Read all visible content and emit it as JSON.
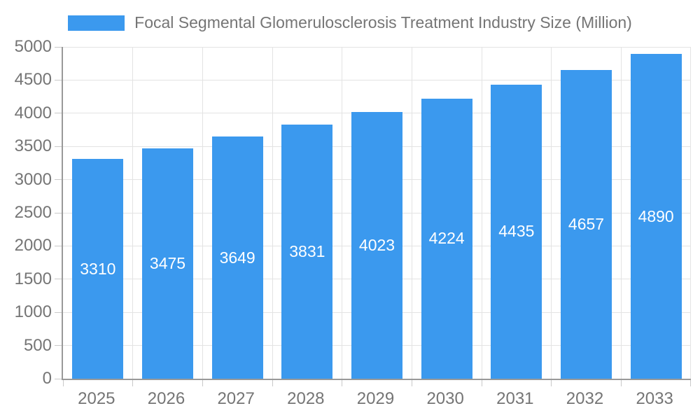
{
  "chart_data": {
    "type": "bar",
    "title": "Focal Segmental Glomerulosclerosis Treatment Industry Size (Million)",
    "categories": [
      "2025",
      "2026",
      "2027",
      "2028",
      "2029",
      "2030",
      "2031",
      "2032",
      "2033"
    ],
    "values": [
      3310,
      3475,
      3649,
      3831,
      4023,
      4224,
      4435,
      4657,
      4890
    ],
    "value_labels": [
      "3310",
      "3475",
      "3649",
      "3831",
      "4023",
      "4224",
      "4435",
      "4657",
      "4890"
    ],
    "ylim": [
      0,
      5000
    ],
    "ytick_step": 500,
    "ytick_labels": [
      "0",
      "500",
      "1000",
      "1500",
      "2000",
      "2500",
      "3000",
      "3500",
      "4000",
      "4500",
      "5000"
    ],
    "grid": true,
    "legend_position": "top-center",
    "bar_color": "#3B99EE",
    "value_label_color": "#FFFFFF",
    "axis_color": "#999999",
    "grid_color": "#E3E3E3",
    "tick_color": "#C9C9C9",
    "text_color": "#757575"
  }
}
